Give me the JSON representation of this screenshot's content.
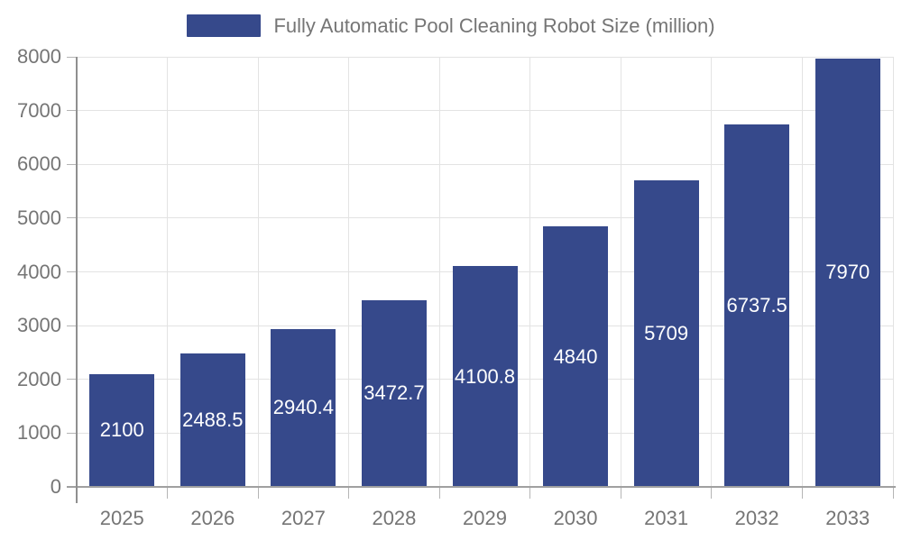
{
  "legend": {
    "items": [
      {
        "label": "Fully Automatic Pool Cleaning Robot Size (million)",
        "color": "#36498B"
      }
    ],
    "position": "top"
  },
  "chart_data": {
    "type": "bar",
    "title": "Fully Automatic Pool Cleaning Robot Size (million)",
    "series_name": "Fully Automatic Pool Cleaning Robot Size (million)",
    "categories": [
      "2025",
      "2026",
      "2027",
      "2028",
      "2029",
      "2030",
      "2031",
      "2032",
      "2033"
    ],
    "values": [
      2100,
      2488.5,
      2940.4,
      3472.7,
      4100.8,
      4840,
      5709,
      6737.5,
      7970
    ],
    "value_labels": [
      "2100",
      "2488.5",
      "2940.4",
      "3472.7",
      "4100.8",
      "4840",
      "5709",
      "6737.5",
      "7970"
    ],
    "xlabel": "",
    "ylabel": "",
    "ylim": [
      0,
      8000
    ],
    "yticks": [
      0,
      1000,
      2000,
      3000,
      4000,
      5000,
      6000,
      7000,
      8000
    ],
    "grid": true,
    "legend_position": "top",
    "colors": {
      "bar": "#36498B",
      "value_label": "#ffffff",
      "axis_text": "#757575",
      "grid_line": "#e3e3e3",
      "axis_line": "#9a9a9a",
      "background": "#ffffff"
    }
  }
}
